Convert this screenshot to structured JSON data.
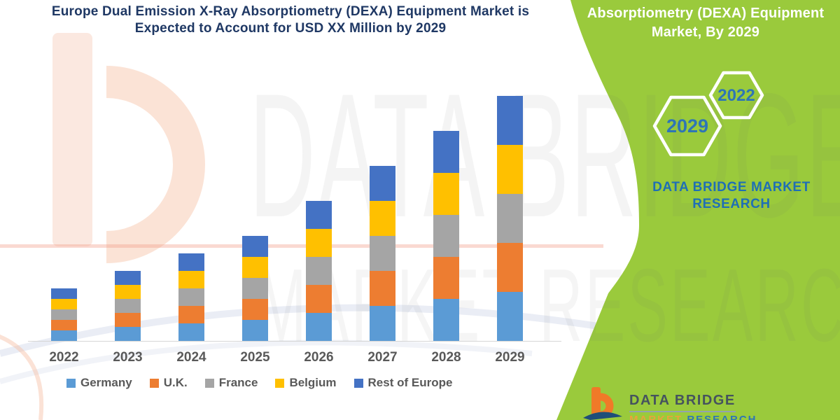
{
  "main_title": "Europe Dual Emission X-Ray Absorptiometry (DEXA) Equipment Market is Expected to Account for USD XX Million by 2029",
  "side_panel": {
    "heading": "Absorptiometry (DEXA) Equipment Market, By 2029",
    "hexagon_large_label": "2029",
    "hexagon_small_label": "2022",
    "brand_caption": "DATA BRIDGE MARKET RESEARCH",
    "panel_color": "#9ACA3C"
  },
  "footer_logo": {
    "brand_name": "DATA BRIDGE",
    "brand_subtext_left": "MARKET",
    "brand_subtext_right": " RESEARCH"
  },
  "watermark": {
    "line1": "DATA BRIDGE",
    "line2": "MARKET RESEARCH"
  },
  "chart_data": {
    "type": "bar",
    "stacked": true,
    "title": "Europe Dual Emission X-Ray Absorptiometry (DEXA) Equipment Market is Expected to Account for USD XX Million by 2029",
    "categories": [
      "2022",
      "2023",
      "2024",
      "2025",
      "2026",
      "2027",
      "2028",
      "2029"
    ],
    "series": [
      {
        "name": "Germany",
        "color": "#5B9BD5",
        "values": [
          15,
          20,
          25,
          30,
          40,
          50,
          60,
          70
        ]
      },
      {
        "name": "U.K.",
        "color": "#ED7D31",
        "values": [
          15,
          20,
          25,
          30,
          40,
          50,
          60,
          70
        ]
      },
      {
        "name": "France",
        "color": "#A5A5A5",
        "values": [
          15,
          20,
          25,
          30,
          40,
          50,
          60,
          70
        ]
      },
      {
        "name": "Belgium",
        "color": "#FFC000",
        "values": [
          15,
          20,
          25,
          30,
          40,
          50,
          60,
          70
        ]
      },
      {
        "name": "Rest of Europe",
        "color": "#4472C4",
        "values": [
          15,
          20,
          25,
          30,
          40,
          50,
          60,
          70
        ]
      }
    ],
    "stack_order_bottom_to_top": [
      "Germany",
      "U.K.",
      "France",
      "Belgium",
      "Rest of Europe"
    ],
    "value_unit": "relative height (no numeric axis shown; chart labeled 'USD XX Million')",
    "bar_totals": [
      75,
      100,
      125,
      150,
      200,
      250,
      300,
      350
    ],
    "xlabel": "",
    "ylabel": "",
    "y_axis_visible": false,
    "grid": false,
    "legend_position": "bottom",
    "axis_line_color": "#D6D6D6",
    "label_color": "#595959",
    "title_color": "#1F3864"
  }
}
